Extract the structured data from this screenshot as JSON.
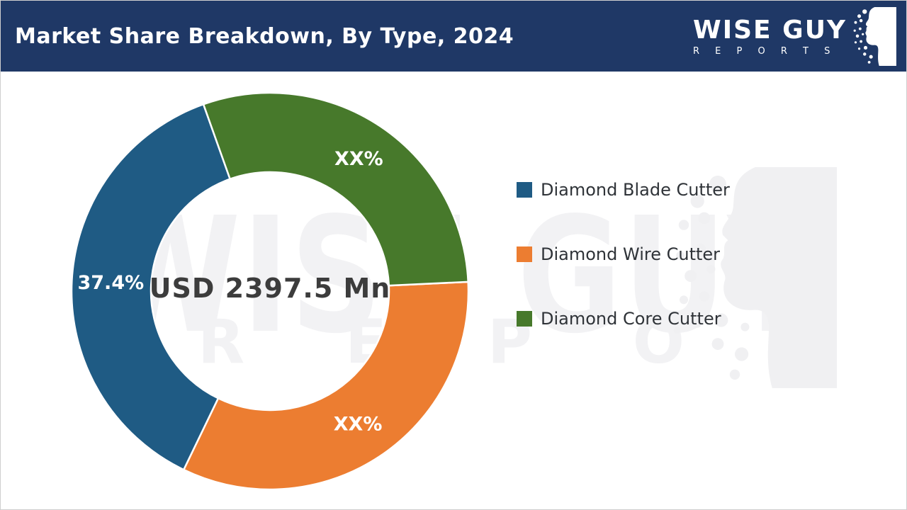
{
  "header": {
    "title": "Market Share Breakdown, By Type, 2024",
    "bg_color": "#1F3866",
    "logo": {
      "line1": "WISE GUY",
      "line2": "R E P O R T S"
    }
  },
  "watermark": {
    "line1": "WISE GUY",
    "line2": "R E P O R T S"
  },
  "chart_data": {
    "type": "donut",
    "title": "Market Share Breakdown, By Type, 2024",
    "center_label": "USD 2397.5 Mn",
    "start_angle_deg": 109.6,
    "direction": "counterclockwise",
    "legend_position": "right",
    "segments": [
      {
        "name": "Diamond Blade Cutter",
        "value_pct": 37.4,
        "label": "37.4%",
        "color": "#1F5B84"
      },
      {
        "name": "Diamond Wire Cutter",
        "value_pct": 32.9,
        "label": "XX%",
        "color": "#EC7D31"
      },
      {
        "name": "Diamond Core Cutter",
        "value_pct": 29.7,
        "label": "XX%",
        "color": "#47792B"
      }
    ]
  }
}
